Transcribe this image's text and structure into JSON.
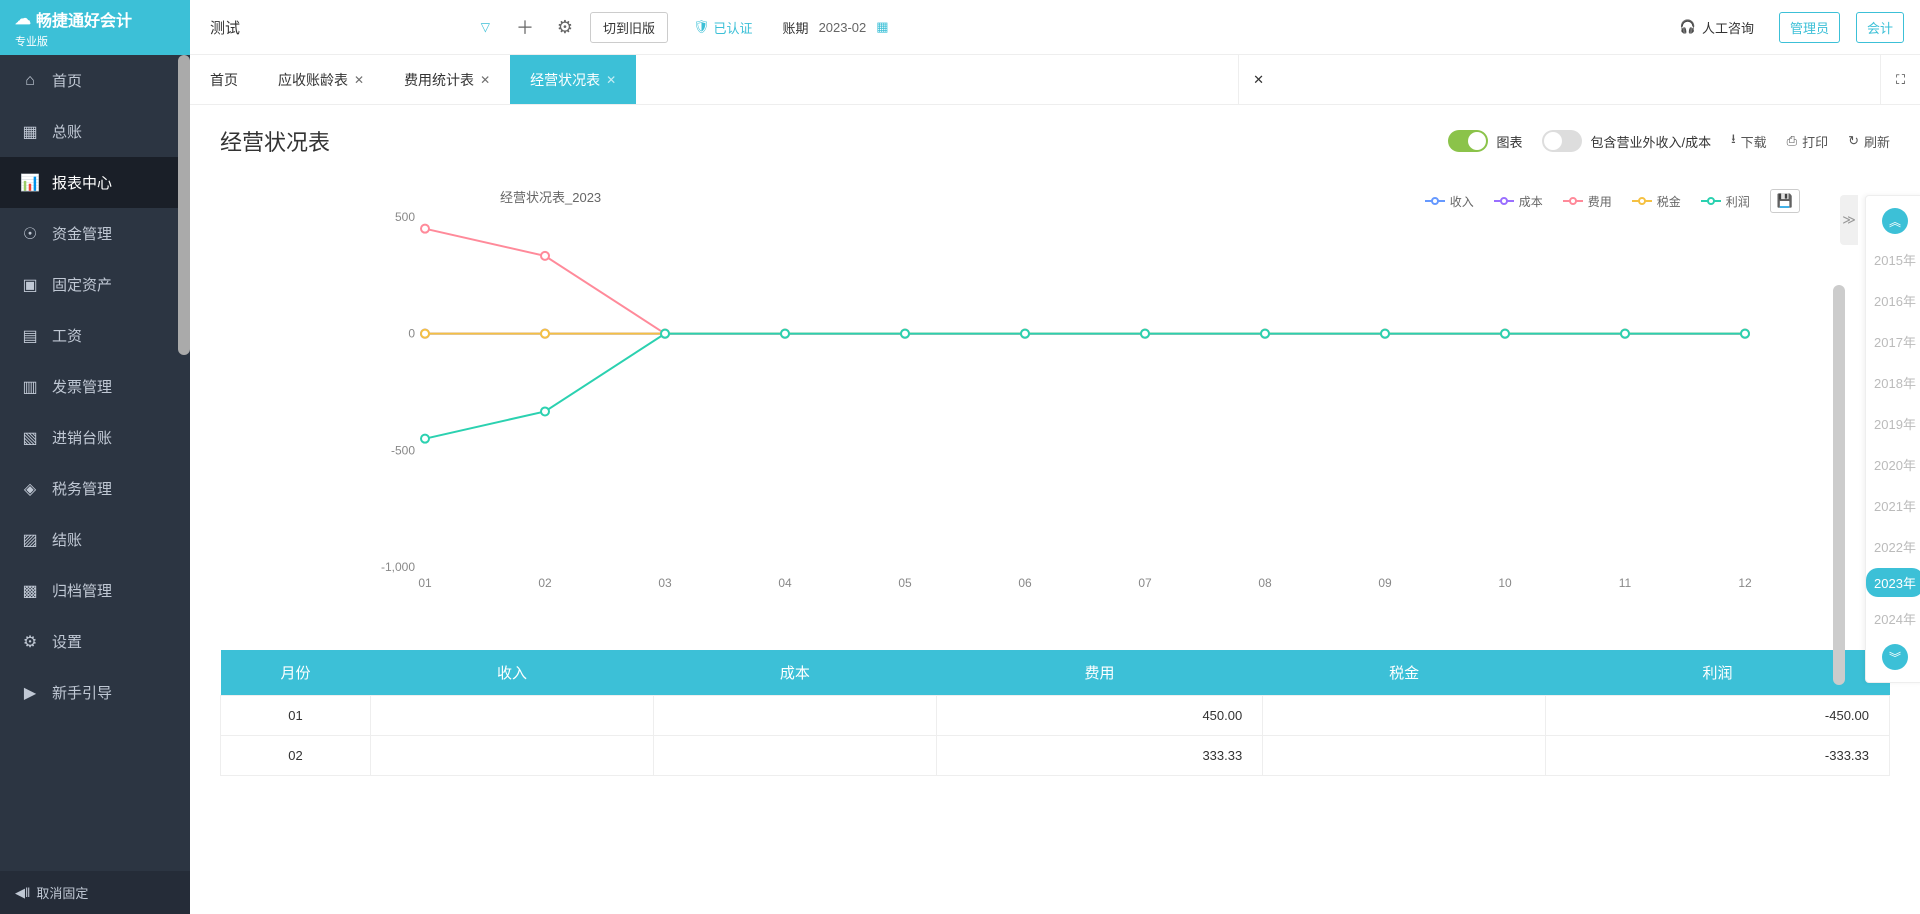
{
  "brand": {
    "name": "畅捷通好会计",
    "edition": "专业版"
  },
  "topbar": {
    "company": "测试",
    "switch_old": "切到旧版",
    "verified": "已认证",
    "period_label": "账期",
    "period_value": "2023-02",
    "support": "人工咨询",
    "role1": "管理员",
    "role2": "会计"
  },
  "sidebar": {
    "items": [
      {
        "icon": "⌂",
        "label": "首页"
      },
      {
        "icon": "▦",
        "label": "总账"
      },
      {
        "icon": "📊",
        "label": "报表中心"
      },
      {
        "icon": "☉",
        "label": "资金管理"
      },
      {
        "icon": "▣",
        "label": "固定资产"
      },
      {
        "icon": "▤",
        "label": "工资"
      },
      {
        "icon": "▥",
        "label": "发票管理"
      },
      {
        "icon": "▧",
        "label": "进销台账"
      },
      {
        "icon": "◈",
        "label": "税务管理"
      },
      {
        "icon": "▨",
        "label": "结账"
      },
      {
        "icon": "▩",
        "label": "归档管理"
      },
      {
        "icon": "⚙",
        "label": "设置"
      },
      {
        "icon": "▶",
        "label": "新手引导"
      }
    ],
    "active_index": 2,
    "unpin": "取消固定"
  },
  "tabs": {
    "items": [
      {
        "label": "首页",
        "closable": false
      },
      {
        "label": "应收账龄表",
        "closable": true
      },
      {
        "label": "费用统计表",
        "closable": true
      },
      {
        "label": "经营状况表",
        "closable": true
      }
    ],
    "active_index": 3
  },
  "page": {
    "title": "经营状况表",
    "toggle_chart_label": "图表",
    "toggle_chart_on": true,
    "toggle_extra_label": "包含营业外收入/成本",
    "toggle_extra_on": false,
    "download": "下载",
    "print": "打印",
    "refresh": "刷新"
  },
  "chart": {
    "title": "经营状况表_2023",
    "x_labels": [
      "01",
      "02",
      "03",
      "04",
      "05",
      "06",
      "07",
      "08",
      "09",
      "10",
      "11",
      "12"
    ],
    "y_ticks": [
      500,
      0,
      -500,
      -1000
    ],
    "ylim": [
      -1000,
      500
    ],
    "series": [
      {
        "name": "收入",
        "color": "#6699ff",
        "data": [
          0,
          0,
          0,
          0,
          0,
          0,
          0,
          0,
          0,
          0,
          0,
          0
        ]
      },
      {
        "name": "成本",
        "color": "#9a6fff",
        "data": [
          0,
          0,
          0,
          0,
          0,
          0,
          0,
          0,
          0,
          0,
          0,
          0
        ]
      },
      {
        "name": "费用",
        "color": "#ff8a9a",
        "data": [
          450,
          333.33,
          0,
          0,
          0,
          0,
          0,
          0,
          0,
          0,
          0,
          0
        ]
      },
      {
        "name": "税金",
        "color": "#f5c143",
        "data": [
          0,
          0,
          0,
          0,
          0,
          0,
          0,
          0,
          0,
          0,
          0,
          0
        ]
      },
      {
        "name": "利润",
        "color": "#2bd1b0",
        "data": [
          -450,
          -333.33,
          0,
          0,
          0,
          0,
          0,
          0,
          0,
          0,
          0,
          0
        ]
      }
    ],
    "plot_bg": "#ffffff"
  },
  "table": {
    "columns": [
      "月份",
      "收入",
      "成本",
      "费用",
      "税金",
      "利润"
    ],
    "rows": [
      [
        "01",
        "",
        "",
        "450.00",
        "",
        "-450.00"
      ],
      [
        "02",
        "",
        "",
        "333.33",
        "",
        "-333.33"
      ]
    ]
  },
  "years": {
    "list": [
      "2015年",
      "2016年",
      "2017年",
      "2018年",
      "2019年",
      "2020年",
      "2021年",
      "2022年",
      "2023年",
      "2024年"
    ],
    "active_index": 8
  }
}
